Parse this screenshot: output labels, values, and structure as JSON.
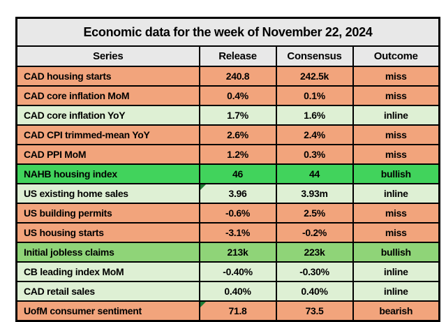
{
  "chart_data": {
    "type": "table",
    "title": "Economic data for the week of November 22, 2024",
    "columns": [
      "Series",
      "Release",
      "Consensus",
      "Outcome"
    ],
    "rows": [
      {
        "series": "CAD housing starts",
        "release": "240.8",
        "consensus": "242.5k",
        "outcome": "miss",
        "fill": "orange",
        "flag": false
      },
      {
        "series": "CAD core inflation MoM",
        "release": "0.4%",
        "consensus": "0.1%",
        "outcome": "miss",
        "fill": "orange",
        "flag": false
      },
      {
        "series": "CAD core inflation YoY",
        "release": "1.7%",
        "consensus": "1.6%",
        "outcome": "inline",
        "fill": "light_green",
        "flag": false
      },
      {
        "series": "CAD CPI trimmed-mean YoY",
        "release": "2.6%",
        "consensus": "2.4%",
        "outcome": "miss",
        "fill": "orange",
        "flag": false
      },
      {
        "series": "CAD PPI MoM",
        "release": "1.2%",
        "consensus": "0.3%",
        "outcome": "miss",
        "fill": "orange",
        "flag": false
      },
      {
        "series": "NAHB housing index",
        "release": "46",
        "consensus": "44",
        "outcome": "bullish",
        "fill": "bright_green",
        "flag": false
      },
      {
        "series": "US existing home sales",
        "release": "3.96",
        "consensus": "3.93m",
        "outcome": "inline",
        "fill": "light_green",
        "flag": true
      },
      {
        "series": "US building permits",
        "release": "-0.6%",
        "consensus": "2.5%",
        "outcome": "miss",
        "fill": "orange",
        "flag": false
      },
      {
        "series": "US housing starts",
        "release": "-3.1%",
        "consensus": "-0.2%",
        "outcome": "miss",
        "fill": "orange",
        "flag": false
      },
      {
        "series": "Initial jobless claims",
        "release": "213k",
        "consensus": "223k",
        "outcome": "bullish",
        "fill": "medium_green",
        "flag": false
      },
      {
        "series": "CB leading index MoM",
        "release": "-0.40%",
        "consensus": "-0.30%",
        "outcome": "inline",
        "fill": "light_green",
        "flag": false
      },
      {
        "series": "CAD retail sales",
        "release": "0.40%",
        "consensus": "0.40%",
        "outcome": "inline",
        "fill": "light_green",
        "flag": false
      },
      {
        "series": "UofM consumer sentiment",
        "release": "71.8",
        "consensus": "73.5",
        "outcome": "bearish",
        "fill": "orange",
        "flag": true
      }
    ]
  },
  "colors": {
    "orange": "#F2A47C",
    "light_green": "#DEF0D4",
    "bright_green": "#41D35C",
    "medium_green": "#8FD478",
    "header_gray": "#E8E8E8",
    "grid_black": "#000000",
    "flag_green": "#1E7B34"
  }
}
